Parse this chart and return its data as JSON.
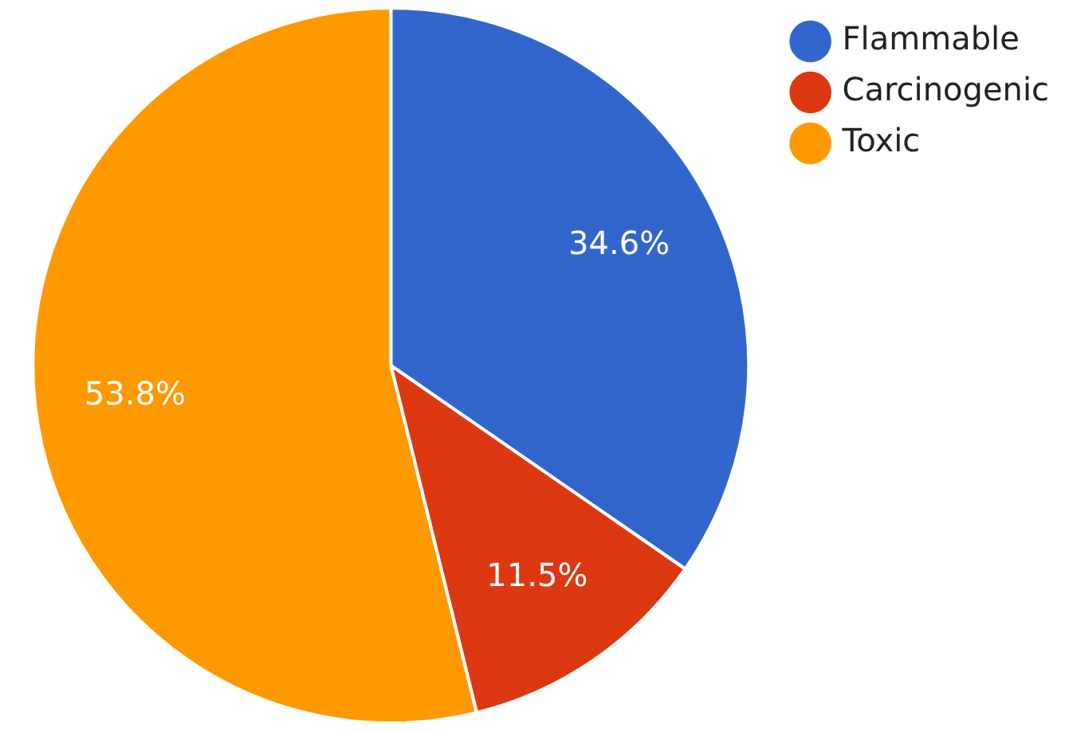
{
  "chart_data": {
    "type": "pie",
    "categories": [
      "Flammable",
      "Carcinogenic",
      "Toxic"
    ],
    "values": [
      34.6,
      11.5,
      53.8
    ],
    "colors": [
      "#3366cc",
      "#dc3912",
      "#ff9900"
    ],
    "value_labels": [
      "34.6%",
      "11.5%",
      "53.8%"
    ],
    "legend": "top right"
  }
}
